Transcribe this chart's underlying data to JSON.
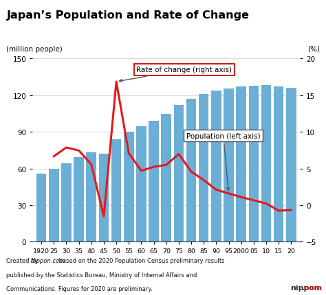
{
  "title": "Japan’s Population and Rate of Change",
  "ylabel_left": "(million people)",
  "ylabel_right": "(%)",
  "footnote_normal1": "Created by ",
  "footnote_italic": "Nippon.com",
  "footnote_normal2": " based on the 2020 Population Census preliminary results\npublished by the Statistics Bureau, Ministry of Internal Affairs and\nCommunications. Figures for 2020 are preliminary.",
  "years": [
    1920,
    1925,
    1930,
    1935,
    1940,
    1945,
    1950,
    1955,
    1960,
    1965,
    1970,
    1975,
    1980,
    1985,
    1990,
    1995,
    2000,
    2005,
    2010,
    2015,
    2020
  ],
  "population": [
    55.96,
    59.74,
    64.45,
    69.25,
    73.11,
    71.99,
    84.12,
    90.08,
    94.3,
    99.21,
    104.67,
    111.94,
    117.06,
    121.05,
    123.61,
    125.57,
    126.93,
    127.77,
    128.06,
    127.09,
    126.23
  ],
  "rate_of_change": [
    null,
    6.66,
    7.86,
    7.45,
    5.57,
    -1.53,
    16.84,
    7.08,
    4.69,
    5.22,
    5.49,
    6.96,
    4.57,
    3.41,
    2.11,
    1.59,
    1.09,
    0.66,
    0.22,
    -0.76,
    -0.68
  ],
  "bar_color": "#6baed6",
  "line_color": "#e31a1c",
  "ylim_left": [
    0,
    150
  ],
  "ylim_right": [
    -5,
    20
  ],
  "yticks_left": [
    0,
    30,
    60,
    90,
    120,
    150
  ],
  "yticks_right": [
    -5,
    0,
    5,
    10,
    15,
    20
  ],
  "x_tick_labels": [
    "1920",
    "25",
    "30",
    "35",
    "40",
    "45",
    "50",
    "55",
    "60",
    "65",
    "70",
    "75",
    "80",
    "85",
    "90",
    "95",
    "2000",
    "05",
    "10",
    "15",
    "20"
  ],
  "bg_color": "#ffffff",
  "grid_color": "#d0d0d0"
}
